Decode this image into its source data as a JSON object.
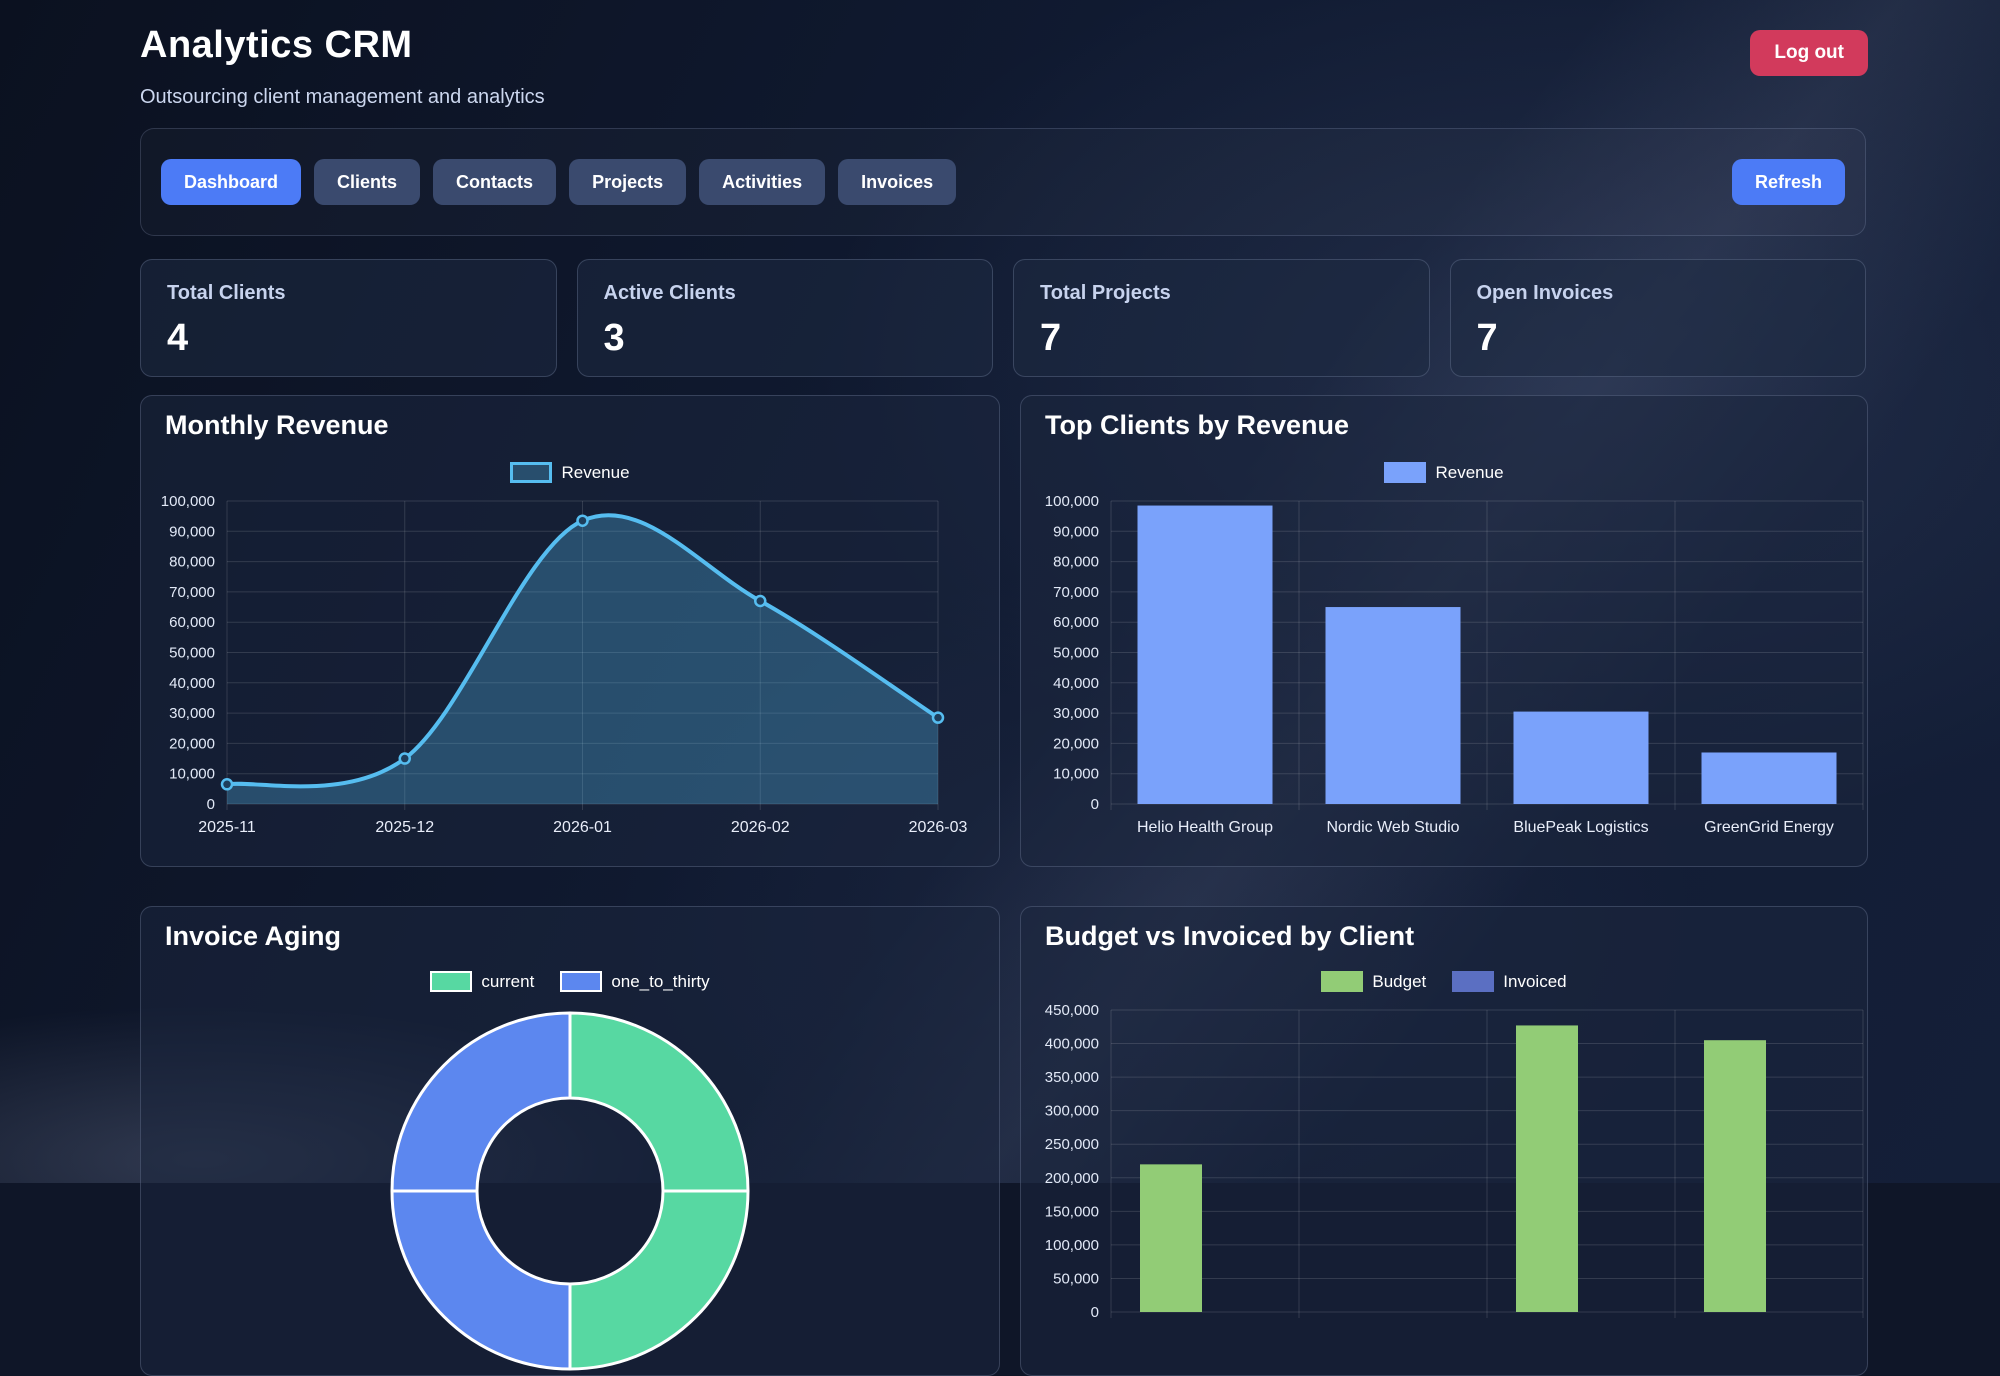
{
  "header": {
    "title": "Analytics CRM",
    "subtitle": "Outsourcing client management and analytics",
    "logout_label": "Log out"
  },
  "nav": {
    "items": [
      {
        "label": "Dashboard",
        "active": true
      },
      {
        "label": "Clients",
        "active": false
      },
      {
        "label": "Contacts",
        "active": false
      },
      {
        "label": "Projects",
        "active": false
      },
      {
        "label": "Activities",
        "active": false
      },
      {
        "label": "Invoices",
        "active": false
      }
    ],
    "refresh_label": "Refresh"
  },
  "stats": [
    {
      "label": "Total Clients",
      "value": "4"
    },
    {
      "label": "Active Clients",
      "value": "3"
    },
    {
      "label": "Total Projects",
      "value": "7"
    },
    {
      "label": "Open Invoices",
      "value": "7"
    }
  ],
  "colors": {
    "accent_blue": "#4c7bf6",
    "inactive_nav": "#3a4a6e",
    "logout_red": "#d23a5c",
    "grid": "rgba(255,255,255,0.13)"
  },
  "chart_data": [
    {
      "type": "line",
      "title": "Monthly Revenue",
      "x": [
        "2025-11",
        "2025-12",
        "2026-01",
        "2026-02",
        "2026-03"
      ],
      "series": [
        {
          "name": "Revenue",
          "values": [
            6500,
            15000,
            93500,
            67000,
            28500
          ],
          "line_color": "#56bdf0",
          "fill_color": "rgba(86,189,240,0.30)",
          "point_fill": "#1e3e5c"
        }
      ],
      "ylim": [
        0,
        100000
      ],
      "ytick_step": 10000,
      "grid": true,
      "legend_position": "top"
    },
    {
      "type": "bar",
      "title": "Top Clients by Revenue",
      "categories": [
        "Helio Health Group",
        "Nordic Web Studio",
        "BluePeak Logistics",
        "GreenGrid Energy"
      ],
      "series": [
        {
          "name": "Revenue",
          "values": [
            98500,
            65000,
            30500,
            17000
          ],
          "color": "#7aa2fb"
        }
      ],
      "ylim": [
        0,
        100000
      ],
      "ytick_step": 10000,
      "grid": true,
      "legend_position": "top"
    },
    {
      "type": "pie",
      "title": "Invoice Aging",
      "doughnut": true,
      "slices": [
        {
          "label": "current",
          "percent": 50,
          "color": "#57d8a2"
        },
        {
          "label": "one_to_thirty",
          "percent": 50,
          "color": "#5c87ef"
        }
      ],
      "legend_position": "top"
    },
    {
      "type": "bar",
      "title": "Budget vs Invoiced by Client",
      "categories": [
        "",
        "",
        "",
        ""
      ],
      "series": [
        {
          "name": "Budget",
          "values": [
            220000,
            null,
            427000,
            405000
          ],
          "color": "#92cc76"
        },
        {
          "name": "Invoiced",
          "values": [
            null,
            null,
            null,
            null
          ],
          "color": "#5b6fc2"
        }
      ],
      "ylim": [
        0,
        450000
      ],
      "ytick_step": 50000,
      "grid": true,
      "legend_position": "top"
    }
  ]
}
